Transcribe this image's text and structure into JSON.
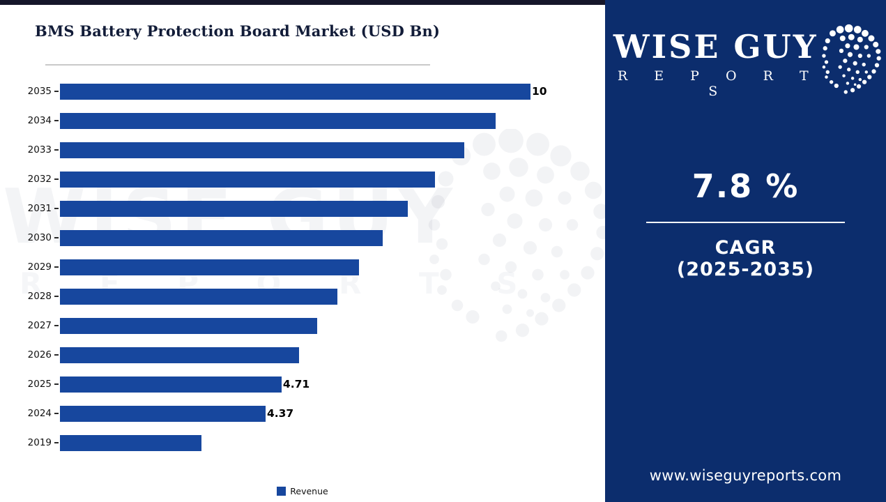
{
  "colors": {
    "bar": "#17479e",
    "panel": "#0c2d6d",
    "title_text": "#121c38",
    "top_strip": "#15162a"
  },
  "chart": {
    "title": "BMS Battery Protection Board Market (USD Bn)",
    "legend_label": "Revenue"
  },
  "chart_data": {
    "type": "bar",
    "orientation": "horizontal",
    "title": "BMS Battery Protection Board Market (USD Bn)",
    "unit": "USD Bn",
    "categories": [
      "2035",
      "2034",
      "2033",
      "2032",
      "2031",
      "2030",
      "2029",
      "2028",
      "2027",
      "2026",
      "2025",
      "2024",
      "2019"
    ],
    "values": [
      10,
      9.26,
      8.59,
      7.97,
      7.39,
      6.86,
      6.36,
      5.9,
      5.47,
      5.08,
      4.71,
      4.37,
      3.0
    ],
    "data_labels": [
      "10",
      "",
      "",
      "",
      "",
      "",
      "",
      "",
      "",
      "",
      "4.71",
      "4.37",
      ""
    ],
    "series_name": "Revenue",
    "xlim": [
      0,
      10
    ],
    "grid": false,
    "legend_position": "bottom",
    "bar_color": "#17479e"
  },
  "watermark": {
    "line1": "WISE GUY",
    "line2": "R E P O R T S"
  },
  "panel": {
    "logo_line1": "WISE GUY",
    "logo_line2": "R E P O R T S",
    "cagr_value": "7.8 %",
    "cagr_label": "CAGR",
    "cagr_range": "(2025-2035)",
    "website": "www.wiseguyreports.com"
  }
}
